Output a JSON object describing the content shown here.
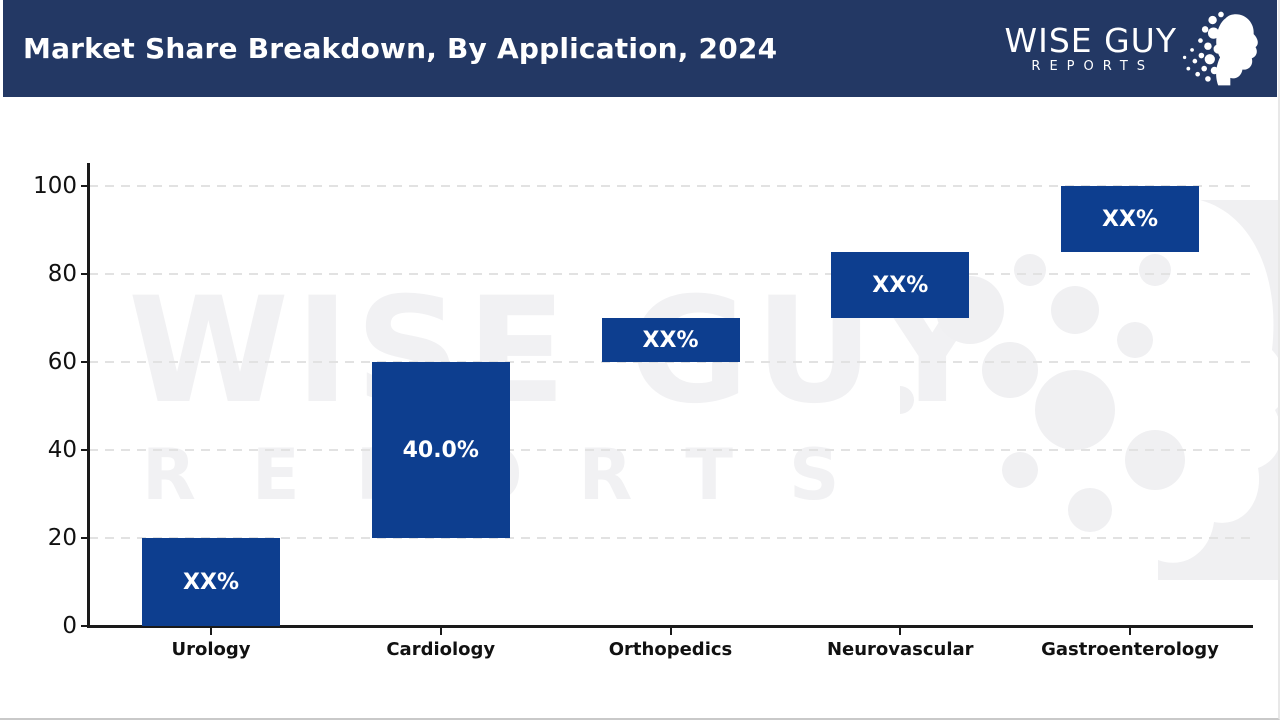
{
  "header": {
    "title": "Market Share Breakdown, By Application, 2024",
    "logo": {
      "brand": "WISE GUY",
      "sub": "REPORTS"
    }
  },
  "watermark": {
    "line1": "WISE GUY",
    "line2": "REPORTS"
  },
  "colors": {
    "header_bg": "#233864",
    "bar": "#0d3e8f",
    "grid": "#e2e2e2",
    "axis": "#1a1a1a",
    "watermark": "#f1f1f3",
    "bar_label": "#ffffff"
  },
  "chart_data": {
    "type": "bar",
    "subtype": "waterfall",
    "title": "Market Share Breakdown, By Application, 2024",
    "categories": [
      "Urology",
      "Cardiology",
      "Orthopedics",
      "Neurovascular",
      "Gastroenterology"
    ],
    "series": [
      {
        "name": "Market Share (%)",
        "base": [
          0,
          20,
          60,
          70,
          85
        ],
        "values": [
          20,
          40,
          10,
          15,
          15
        ]
      }
    ],
    "bar_labels": [
      "XX%",
      "40.0%",
      "XX%",
      "XX%",
      "XX%"
    ],
    "xlabel": "",
    "ylabel": "",
    "ylim": [
      0,
      105
    ],
    "yticks": [
      0,
      20,
      40,
      60,
      80,
      100
    ],
    "grid": "horizontal-dashed",
    "legend": "none"
  }
}
